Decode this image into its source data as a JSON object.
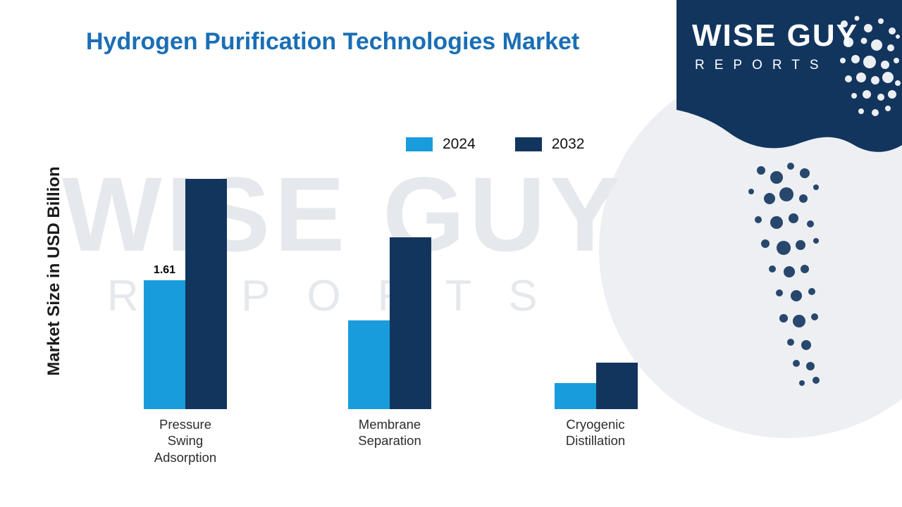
{
  "chart_data": {
    "type": "bar",
    "title": "Hydrogen Purification Technologies Market",
    "ylabel": "Market Size in USD Billion",
    "unit": "USD Billion",
    "categories": [
      "Pressure Swing Adsorption",
      "Membrane Separation",
      "Cryogenic Distillation"
    ],
    "series": [
      {
        "name": "2024",
        "color": "#189cdb",
        "values": [
          1.61,
          1.11,
          0.33
        ]
      },
      {
        "name": "2032",
        "color": "#12355e",
        "values": [
          2.88,
          2.15,
          0.58
        ]
      }
    ],
    "bar_label": {
      "text": "1.61",
      "series_index": 0,
      "category_index": 0
    },
    "legend_position": "top",
    "grid": false
  },
  "logo": {
    "brand": "WISE GUY",
    "subtitle": "REPORTS"
  },
  "watermark": {
    "line1": "WISE GUY",
    "line2": "REPORTS"
  },
  "colors": {
    "title_blue": "#1a6eb5",
    "series_2024": "#189cdb",
    "series_2032": "#12355e",
    "logo_background": "#12355e",
    "watermark_gray": "#e5e8ec"
  }
}
